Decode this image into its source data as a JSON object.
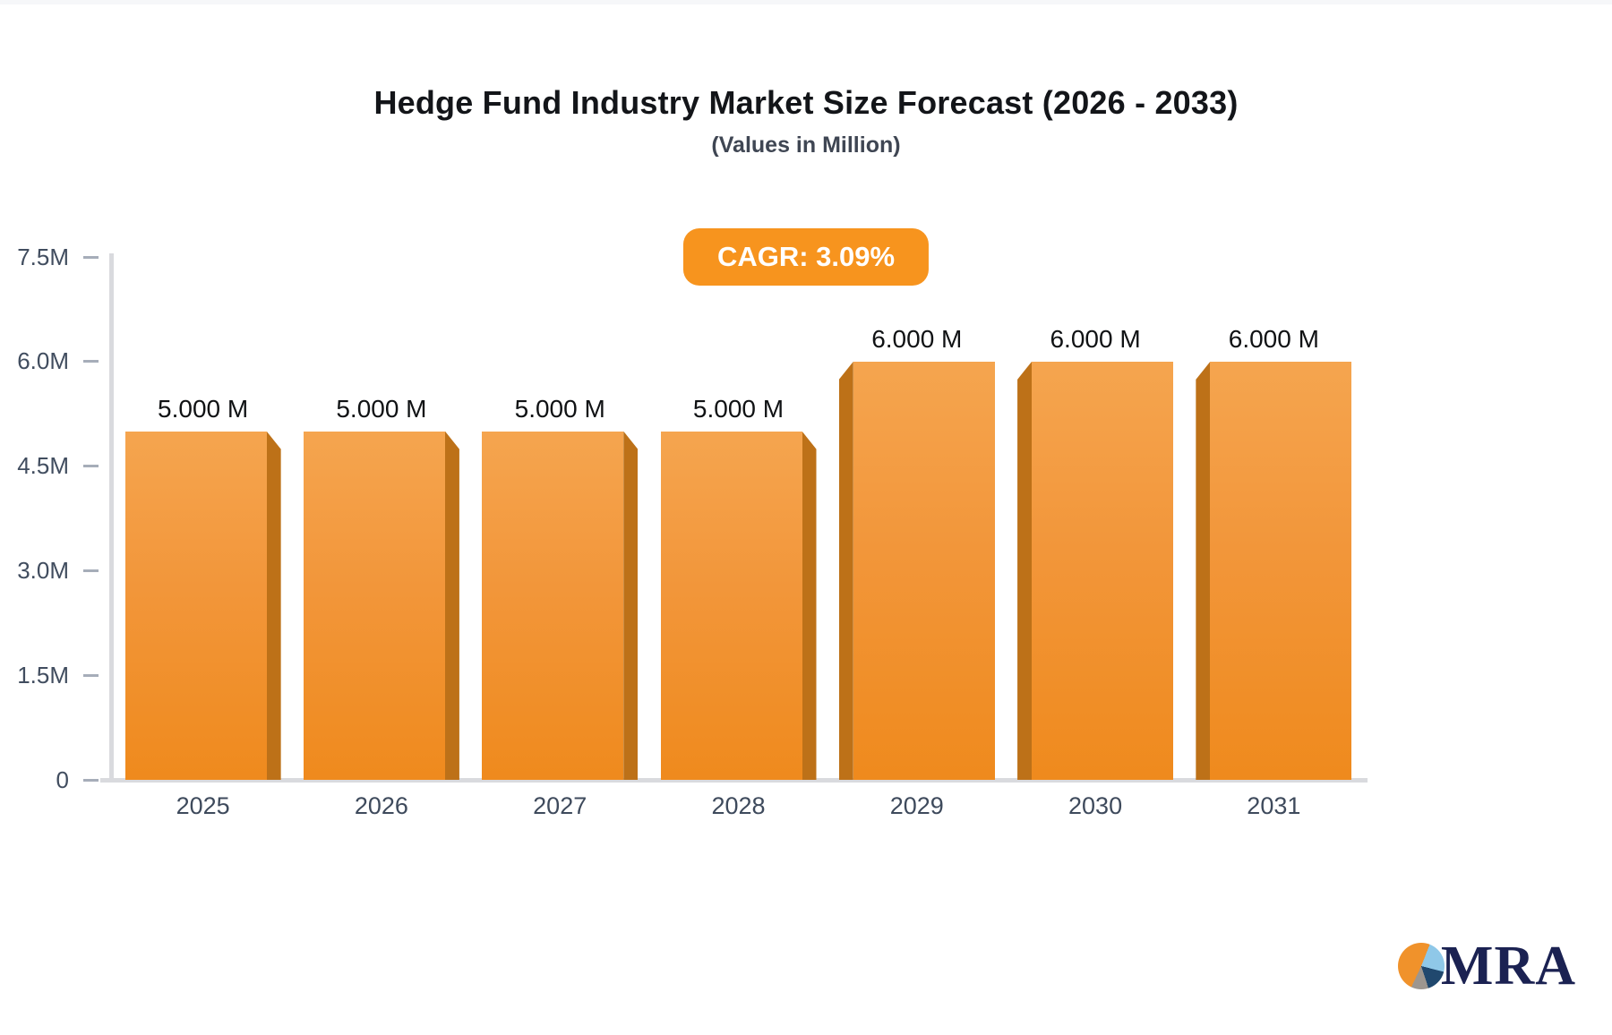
{
  "title": "Hedge Fund Industry Market Size Forecast (2026 - 2033)",
  "subtitle": "(Values in Million)",
  "badge": {
    "label": "CAGR: 3.09%",
    "bg_color": "#F7941E"
  },
  "chart_data": {
    "type": "bar",
    "categories": [
      "2025",
      "2026",
      "2027",
      "2028",
      "2029",
      "2030",
      "2031"
    ],
    "values": [
      5.0,
      5.0,
      5.0,
      5.0,
      6.0,
      6.0,
      6.0
    ],
    "value_labels": [
      "5.000 M",
      "5.000 M",
      "5.000 M",
      "5.000 M",
      "6.000 M",
      "6.000 M",
      "6.000 M"
    ],
    "unit": "Million",
    "title": "Hedge Fund Industry Market Size Forecast (2026 - 2033)",
    "xlabel": "",
    "ylabel": "",
    "ylim": [
      0,
      7.5
    ],
    "yticks": [
      0,
      1.5,
      3.0,
      4.5,
      6.0,
      7.5
    ],
    "ytick_labels": [
      "0",
      "1.5M",
      "3.0M",
      "4.5M",
      "6.0M",
      "7.5M"
    ],
    "grid": false,
    "legend": "none",
    "bar_gradient_top": "#F5A54F",
    "bar_gradient_bottom": "#EF8A1D",
    "bar_side_color": "#BD7118"
  },
  "logo": {
    "text": "MRA",
    "icon": "pie-chart-logo-icon",
    "text_color": "#1B2252",
    "pie_colors": [
      "#F0922B",
      "#8FC8E8",
      "#20486E",
      "#9D968F"
    ]
  }
}
